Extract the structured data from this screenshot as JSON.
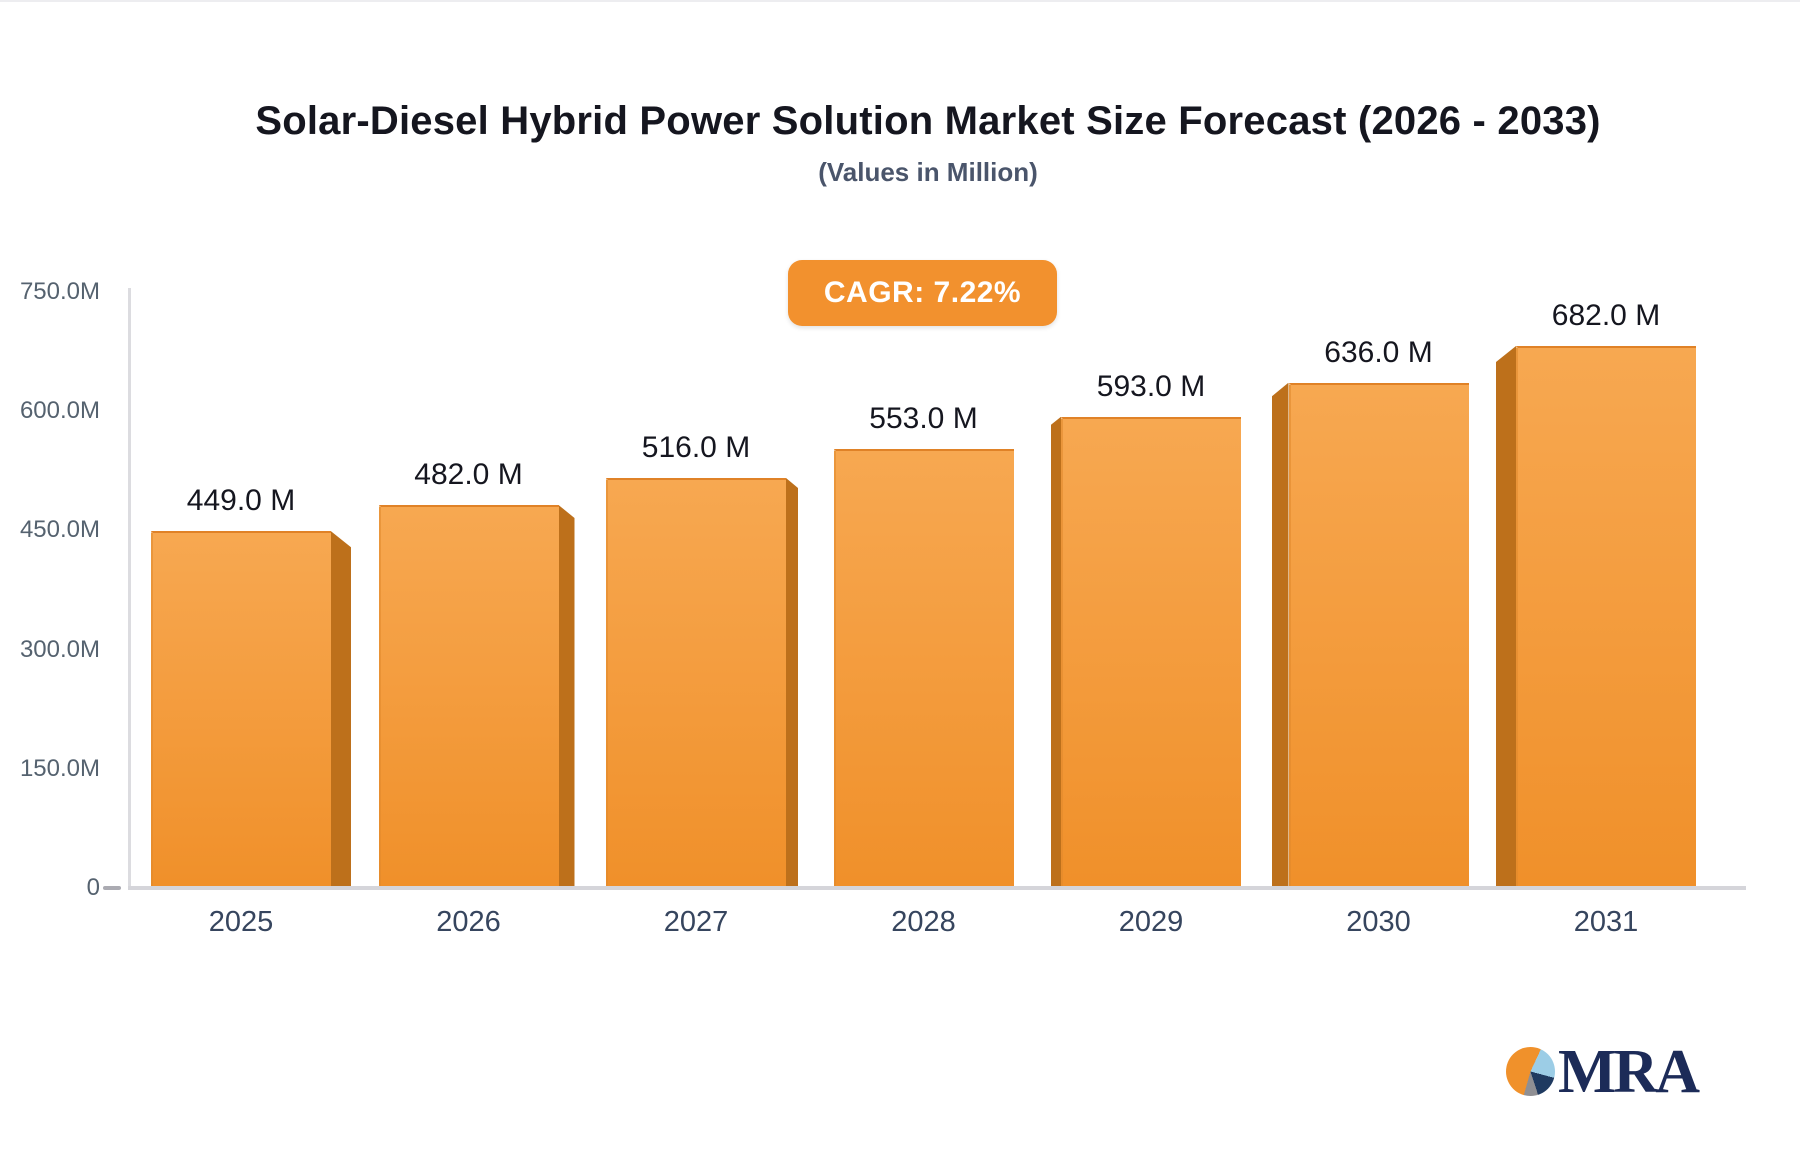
{
  "title": "Solar-Diesel Hybrid Power Solution Market Size Forecast (2026 - 2033)",
  "subtitle": "(Values in Million)",
  "badge": {
    "label": "CAGR: 7.22%"
  },
  "chart_data": {
    "type": "bar",
    "categories": [
      "2025",
      "2026",
      "2027",
      "2028",
      "2029",
      "2030",
      "2031"
    ],
    "values": [
      449.0,
      482.0,
      516.0,
      553.0,
      593.0,
      636.0,
      682.0
    ],
    "value_labels": [
      "449.0 M",
      "482.0 M",
      "516.0 M",
      "553.0 M",
      "593.0 M",
      "636.0 M",
      "682.0 M"
    ],
    "xlabel": "",
    "ylabel": "",
    "ylim": [
      0,
      750
    ],
    "yticks": [
      {
        "label": "750.0M",
        "value": 750
      },
      {
        "label": "600.0M",
        "value": 600
      },
      {
        "label": "450.0M",
        "value": 450
      },
      {
        "label": "300.0M",
        "value": 300
      },
      {
        "label": "150.0M",
        "value": 150
      },
      {
        "label": "0",
        "value": 0
      }
    ],
    "grid": false,
    "legend": "none",
    "style": "3d-perspective-bars",
    "colors": {
      "face_top": "#F7A851",
      "face_bottom": "#F0902A",
      "face_edge": "#E08227",
      "side": "#BD701B",
      "axis": "#DCDCE0",
      "baseline": "#D5D5DA",
      "tick_text": "#55626F",
      "category_text": "#36455E",
      "value_text": "#15161F",
      "badge_bg": "#F2912E",
      "badge_text": "#FFFFFF"
    }
  },
  "logo": {
    "text": "MRA",
    "pie_icon_colors": {
      "orange": "#F0912B",
      "light_blue": "#9CCDE6",
      "navy": "#1F3A60",
      "gray": "#8F8F93",
      "text": "#1C2B58"
    }
  }
}
